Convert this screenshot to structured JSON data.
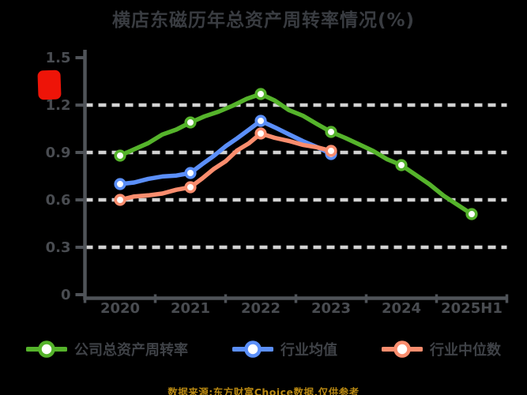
{
  "title": "横店东磁历年总资产周转率情况(%)",
  "footer": "数据来源:东方财富Choice数据,仅供参考",
  "colors": {
    "background": "#000000",
    "company_series": "#55b32b",
    "industry_mean_series": "#5b8ff9",
    "industry_median_series": "#fa8d6e",
    "red_badge": "#ee1408",
    "gridline": "#dedede",
    "axis_spine": "#4f5358",
    "axis_text": "#494c51",
    "title_text": "#393c41",
    "footer_text": "#b88812"
  },
  "chart_data": {
    "type": "line",
    "title": "横店东磁历年总资产周转率情况(%)",
    "xlabel": "",
    "ylabel": "",
    "categories": [
      "2020",
      "2021",
      "2022",
      "2023",
      "2024",
      "2025H1"
    ],
    "series": [
      {
        "name": "公司总资产周转率",
        "color": "#55b32b",
        "values": [
          0.88,
          1.09,
          1.27,
          1.03,
          0.82,
          0.51
        ]
      },
      {
        "name": "行业均值",
        "color": "#5b8ff9",
        "values": [
          0.7,
          0.77,
          1.1,
          0.89,
          null,
          null
        ]
      },
      {
        "name": "行业中位数",
        "color": "#fa8d6e",
        "values": [
          0.6,
          0.68,
          1.02,
          0.91,
          null,
          null
        ]
      }
    ],
    "ylim": [
      0,
      1.5
    ],
    "yticks": [
      0,
      0.3,
      0.6,
      0.9,
      1.2,
      1.5
    ],
    "ytick_labels": [
      "0",
      "0.3",
      "0.6",
      "0.9",
      "1.2",
      "1.5"
    ],
    "grid_values": [
      0.3,
      0.6,
      0.9,
      1.2
    ],
    "grid_style": "dashed-white-horizontal",
    "legend_position": "bottom",
    "marker": "circle-white-fill-colored-ring",
    "line_style": "hand-drawn-rough"
  }
}
